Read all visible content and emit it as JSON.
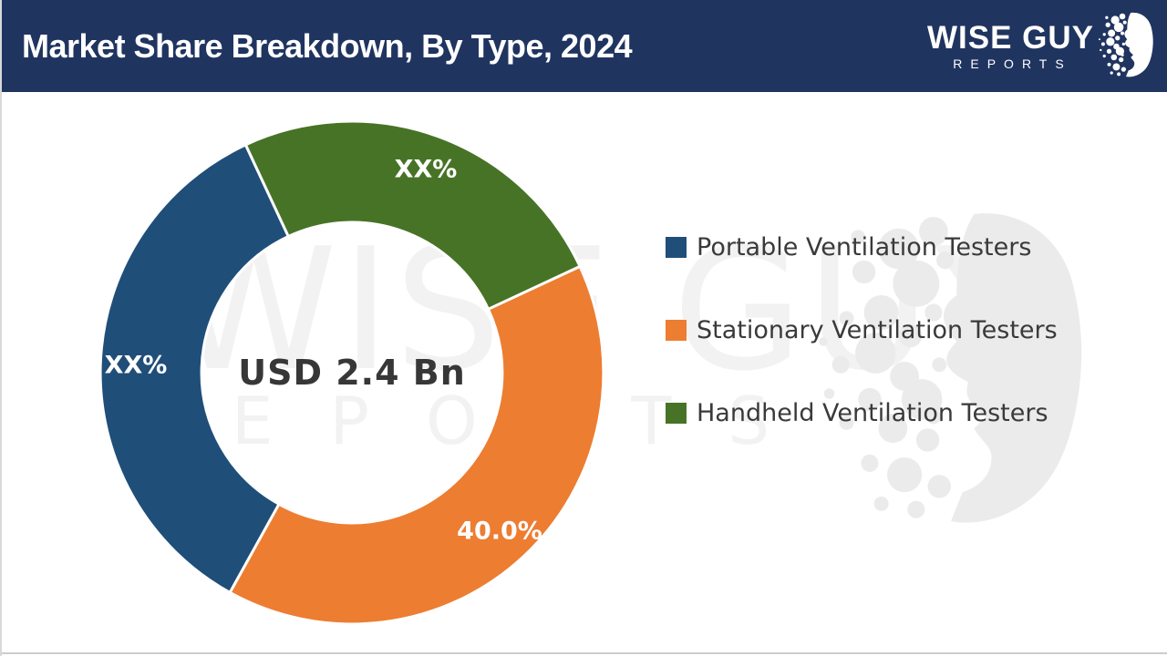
{
  "header": {
    "title": "Market Share Breakdown, By Type, 2024",
    "logo": {
      "line1": "WISE GUY",
      "line2": "REPORTS"
    }
  },
  "watermark": {
    "line1": "WISE GUY",
    "line2": "REPORTS"
  },
  "chart_data": {
    "type": "pie",
    "subtype": "donut",
    "title": "Market Share Breakdown, By Type, 2024",
    "center_label": "USD 2.4 Bn",
    "unit": "percent share",
    "start_angle_deg": 115,
    "direction": "counterclockwise",
    "legend_position": "right",
    "segments": [
      {
        "label": "Portable Ventilation Testers",
        "value_pct": 35,
        "pct_label": "XX%",
        "color": "#1F4E79"
      },
      {
        "label": "Stationary Ventilation Testers",
        "value_pct": 40,
        "pct_label": "40.0%",
        "color": "#ED7D31"
      },
      {
        "label": "Handheld Ventilation Testers",
        "value_pct": 25,
        "pct_label": "XX%",
        "color": "#477326"
      }
    ],
    "colors": {
      "header_bar": "#203460",
      "center_text": "#373737",
      "legend_text": "#3a3a3a",
      "watermark": "#f2f2f2"
    }
  }
}
